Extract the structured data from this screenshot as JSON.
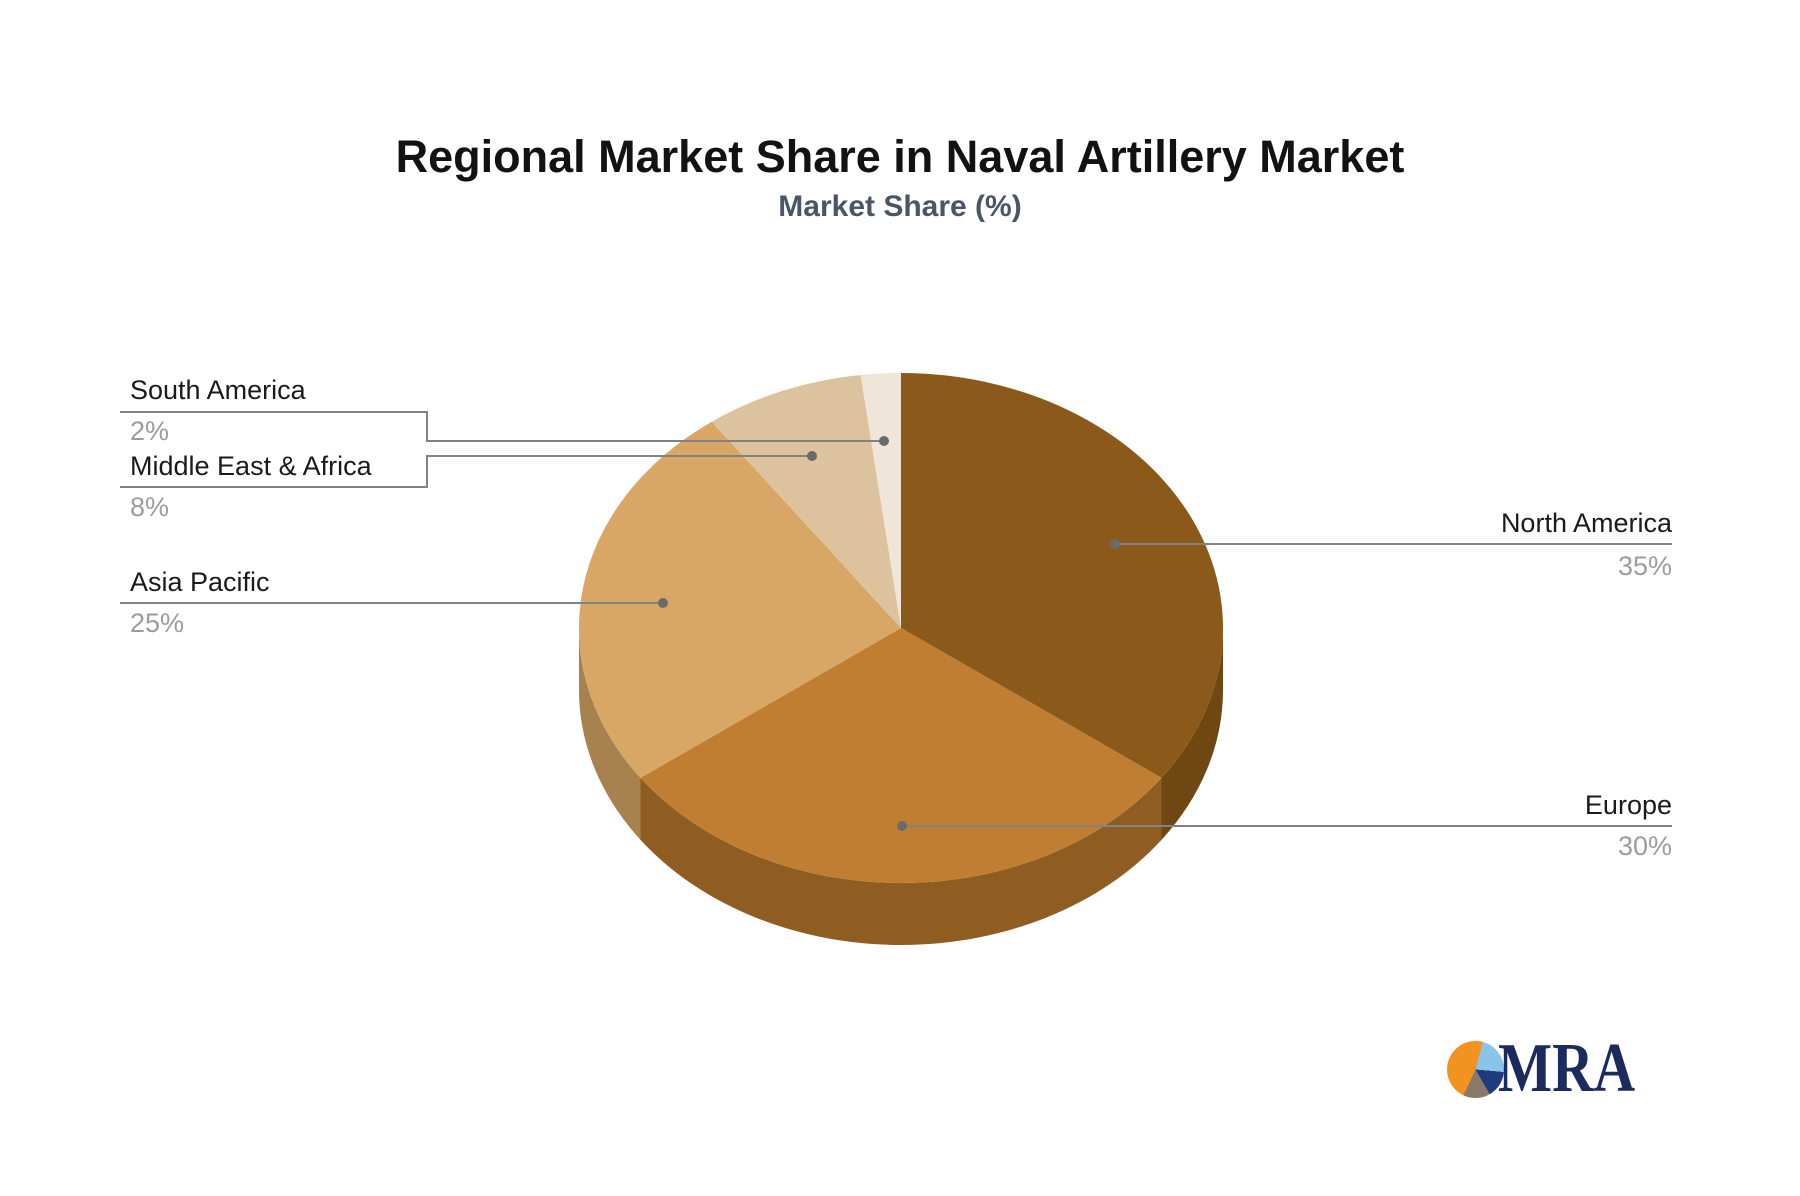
{
  "title": "Regional Market Share in Naval Artillery Market",
  "subtitle": "Market Share (%)",
  "chart_data": {
    "type": "pie",
    "title": "Regional Market Share in Naval Artillery Market",
    "subtitle": "Market Share (%)",
    "unit": "%",
    "effect": "3d",
    "start_angle_deg": -90,
    "direction": "clockwise",
    "legend_position": "callout-labels",
    "slices": [
      {
        "label": "North America",
        "value": 35,
        "display": "35%",
        "color": "#8B5A1A",
        "side_color": "#6F4713"
      },
      {
        "label": "Europe",
        "value": 30,
        "display": "30%",
        "color": "#C07E33",
        "side_color": "#8F5D21"
      },
      {
        "label": "Asia Pacific",
        "value": 25,
        "display": "25%",
        "color": "#D8A765",
        "side_color": "#A8824E"
      },
      {
        "label": "Middle East & Africa",
        "value": 8,
        "display": "8%",
        "color": "#DCC39E"
      },
      {
        "label": "South America",
        "value": 2,
        "display": "2%",
        "color": "#EFE6D9"
      }
    ],
    "leader_line_color": "#828282",
    "leader_dot_color": "#6A6A6A",
    "label_color": "#1A1A1A",
    "percent_color": "#9C9C9C"
  },
  "logo": {
    "text": "MRA",
    "text_color": "#1C2B5E",
    "icon_colors": [
      "#F2931F",
      "#8AC5E9",
      "#1E3C7D",
      "#8A796B"
    ]
  }
}
